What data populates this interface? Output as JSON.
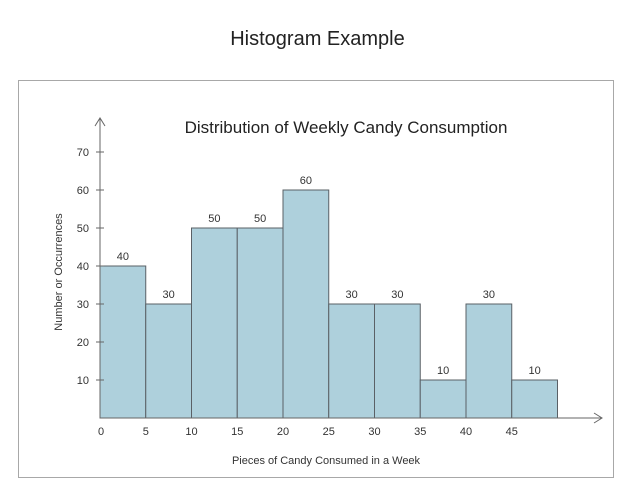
{
  "page": {
    "title": "Histogram Example"
  },
  "chart_data": {
    "type": "bar",
    "title": "Distribution of Weekly Candy Consumption",
    "xlabel": "Pieces of Candy Consumed in a Week",
    "ylabel": "Number or Occurrences",
    "bin_edges": [
      0,
      5,
      10,
      15,
      20,
      25,
      30,
      35,
      40,
      45,
      50
    ],
    "x_tick_labels": [
      "0",
      "5",
      "10",
      "15",
      "20",
      "25",
      "30",
      "35",
      "40",
      "45"
    ],
    "values": [
      40,
      30,
      50,
      50,
      60,
      30,
      30,
      10,
      30,
      10
    ],
    "data_labels": [
      "40",
      "30",
      "50",
      "50",
      "60",
      "30",
      "30",
      "10",
      "30",
      "10"
    ],
    "y_ticks": [
      10,
      20,
      30,
      40,
      50,
      60,
      70
    ],
    "ylim": [
      0,
      80
    ],
    "grid": false,
    "colors": {
      "bar_fill": "#aed0dc",
      "bar_stroke": "#5a6066",
      "axis": "#666666"
    }
  }
}
